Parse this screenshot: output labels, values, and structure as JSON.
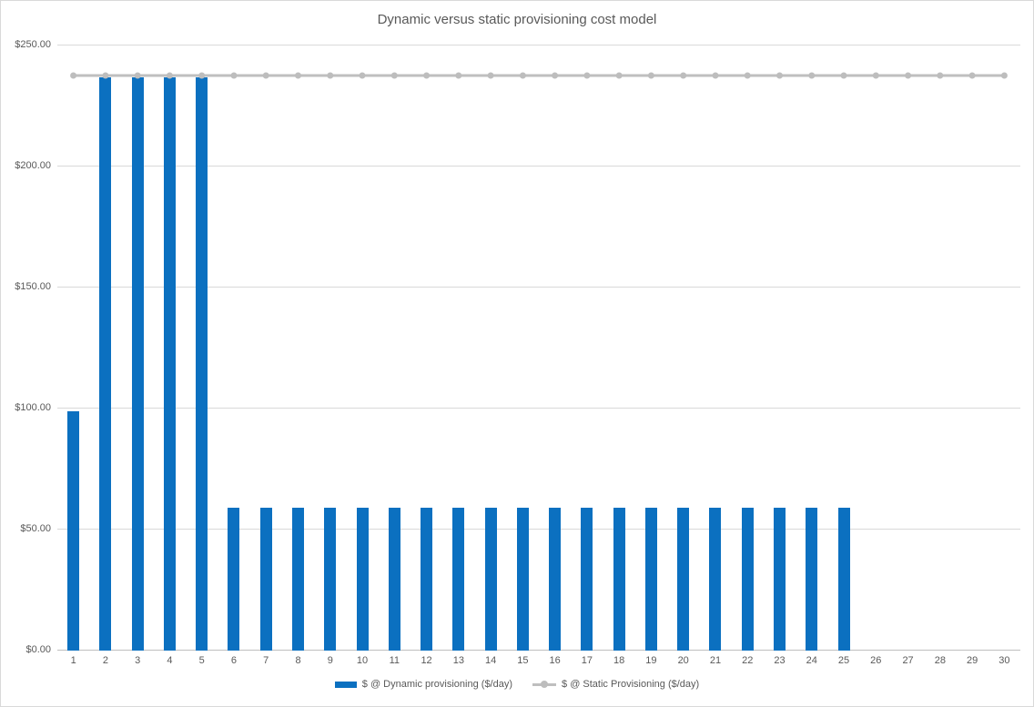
{
  "chart_data": {
    "type": "bar",
    "title": "Dynamic versus static provisioning cost model",
    "categories": [
      "1",
      "2",
      "3",
      "4",
      "5",
      "6",
      "7",
      "8",
      "9",
      "10",
      "11",
      "12",
      "13",
      "14",
      "15",
      "16",
      "17",
      "18",
      "19",
      "20",
      "21",
      "22",
      "23",
      "24",
      "25",
      "26",
      "27",
      "28",
      "29",
      "30"
    ],
    "series": [
      {
        "name": "$ @ Dynamic provisioning ($/day)",
        "type": "bar",
        "color": "#0b70c0",
        "values": [
          99,
          237,
          237,
          237,
          237,
          59,
          59,
          59,
          59,
          59,
          59,
          59,
          59,
          59,
          59,
          59,
          59,
          59,
          59,
          59,
          59,
          59,
          59,
          59,
          59,
          0,
          0,
          0,
          0,
          0
        ]
      },
      {
        "name": "$ @ Static Provisioning ($/day)",
        "type": "line",
        "color": "#bfbfbf",
        "marker_color": "#bdbdbd",
        "values": [
          237.6,
          237.6,
          237.6,
          237.6,
          237.6,
          237.6,
          237.6,
          237.6,
          237.6,
          237.6,
          237.6,
          237.6,
          237.6,
          237.6,
          237.6,
          237.6,
          237.6,
          237.6,
          237.6,
          237.6,
          237.6,
          237.6,
          237.6,
          237.6,
          237.6,
          237.6,
          237.6,
          237.6,
          237.6,
          237.6
        ]
      }
    ],
    "xlabel": "",
    "ylabel": "",
    "ylim": [
      0,
      250
    ],
    "y_ticks": [
      {
        "label": "$250.00",
        "value": 250
      },
      {
        "label": "$200.00",
        "value": 200
      },
      {
        "label": "$150.00",
        "value": 150
      },
      {
        "label": "$100.00",
        "value": 100
      },
      {
        "label": "$50.00",
        "value": 50
      },
      {
        "label": "$0.00",
        "value": 0
      }
    ],
    "grid": true,
    "legend_position": "bottom",
    "colors": {
      "title_text": "#595959",
      "tick_text": "#595959",
      "gridline": "#d9d9d9",
      "axis_line": "#bfbfbf",
      "background": "#ffffff",
      "border": "#d9d9d9"
    }
  }
}
